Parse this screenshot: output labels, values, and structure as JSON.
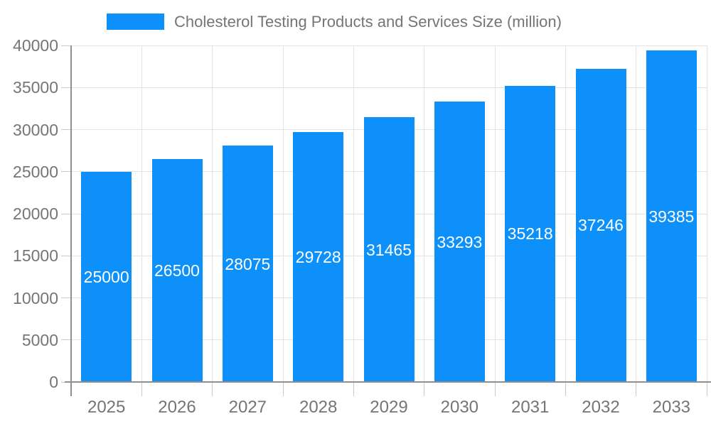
{
  "chart_data": {
    "type": "bar",
    "title": "",
    "legend": "Cholesterol Testing Products and Services Size (million)",
    "legend_position": "top",
    "categories": [
      "2025",
      "2026",
      "2027",
      "2028",
      "2029",
      "2030",
      "2031",
      "2032",
      "2033"
    ],
    "series": [
      {
        "name": "Cholesterol Testing Products and Services Size (million)",
        "values": [
          25000,
          26500,
          28075,
          29728,
          31465,
          33293,
          35218,
          37246,
          39385
        ]
      }
    ],
    "bar_value_labels": [
      "25000",
      "26500",
      "28075",
      "29728",
      "31465",
      "33293",
      "35218",
      "37246",
      "39385"
    ],
    "xlabel": "",
    "ylabel": "",
    "ylim": [
      0,
      40000
    ],
    "ytick_step": 5000,
    "ytick_labels": [
      "0",
      "5000",
      "10000",
      "15000",
      "20000",
      "25000",
      "30000",
      "35000",
      "40000"
    ],
    "grid": true,
    "colors": {
      "bar": "#0d90fa",
      "grid": "#e3e3e3",
      "tick": "#c9c9c9",
      "axis": "#8f8f8f",
      "tick_label": "#757575",
      "legend_text": "#757575",
      "bar_label": "#ffffff",
      "background": "#ffffff"
    }
  }
}
